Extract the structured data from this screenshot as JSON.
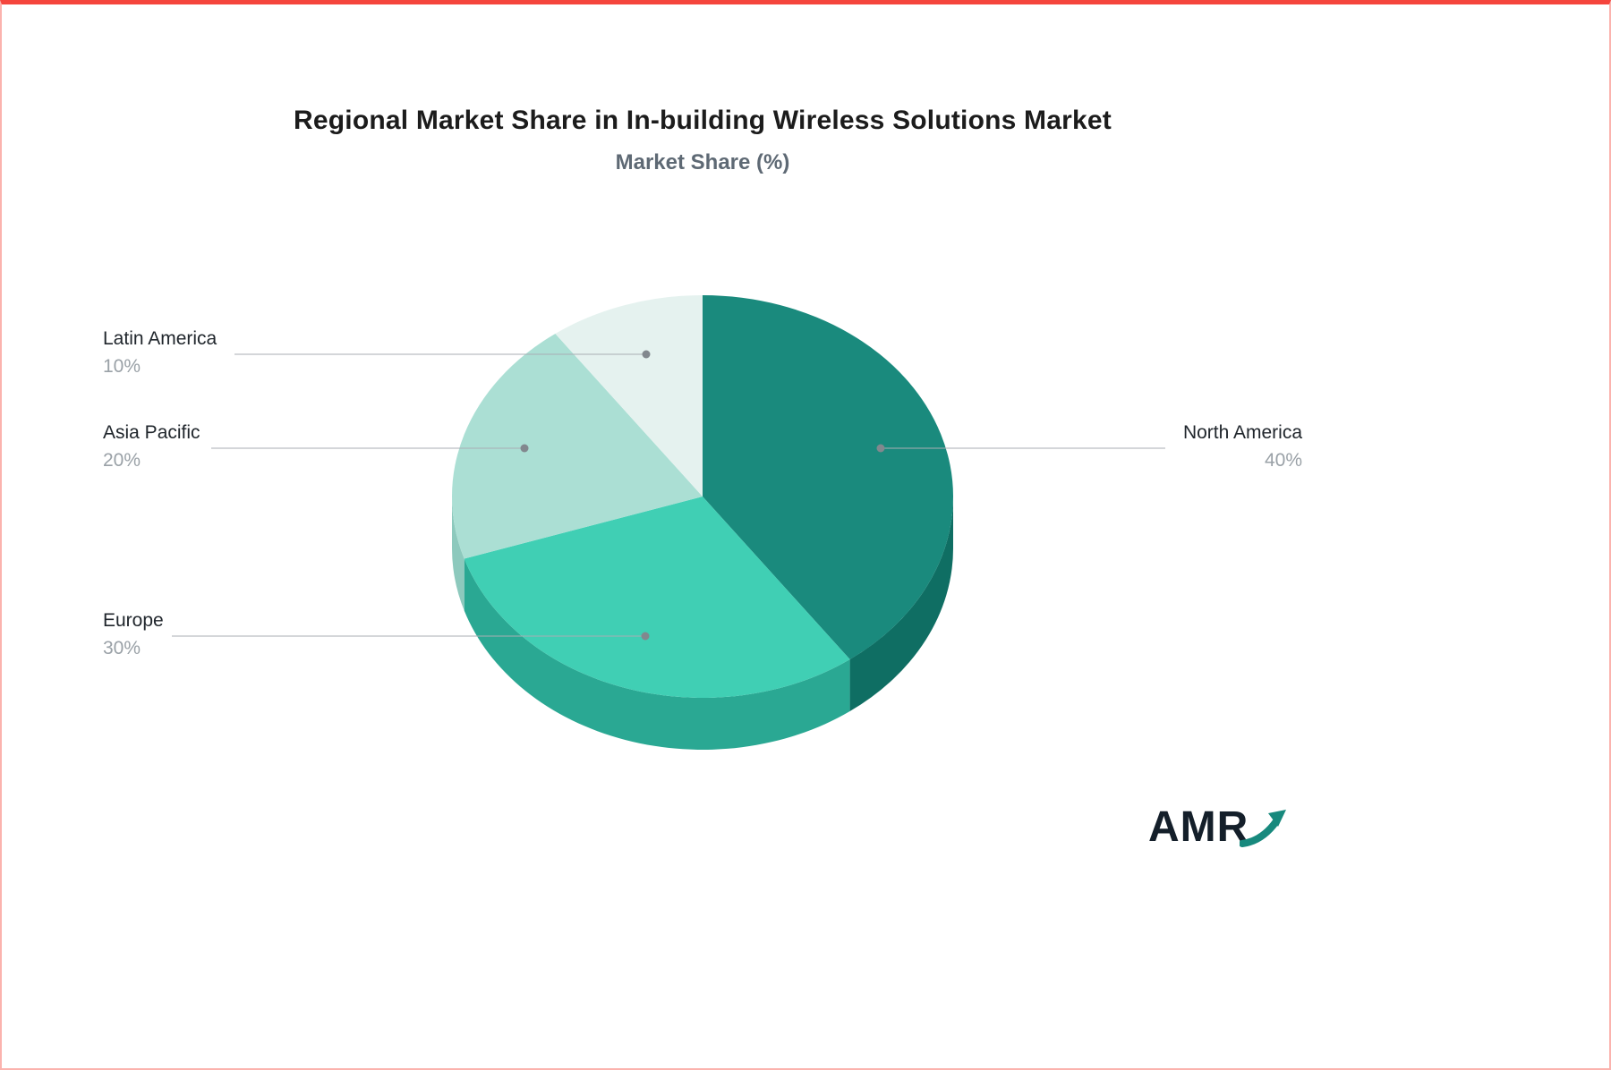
{
  "branding": {
    "logo_text": "AMR"
  },
  "chart_data": {
    "type": "pie",
    "title": "Regional Market Share in In-building Wireless Solutions Market",
    "subtitle": "Market Share (%)",
    "unit": "%",
    "direction": "clockwise",
    "start_angle_deg": 0,
    "effect": "3d-depth",
    "legend_position": "none",
    "label_style": "leader-lines",
    "slices": [
      {
        "label": "North America",
        "value": 40,
        "value_label": "40%",
        "color": "#1a8a7d",
        "side_color": "#0f6e63"
      },
      {
        "label": "Europe",
        "value": 30,
        "value_label": "30%",
        "color": "#40cfb4",
        "side_color": "#2aa893"
      },
      {
        "label": "Asia Pacific",
        "value": 20,
        "value_label": "20%",
        "color": "#abdfd4",
        "side_color": "#8dc9bd"
      },
      {
        "label": "Latin America",
        "value": 10,
        "value_label": "10%",
        "color": "#e5f2ef",
        "side_color": "#c9ded9"
      }
    ],
    "colors": {
      "title_text": "#1c1c1c",
      "subtitle_text": "#5e6974",
      "label_text": "#20262c",
      "value_text": "#9aa1a7",
      "leader_line": "#a9aeb3",
      "leader_dot": "#82888e",
      "accent_teal": "#17897d",
      "border_red": "#f5453d"
    }
  }
}
